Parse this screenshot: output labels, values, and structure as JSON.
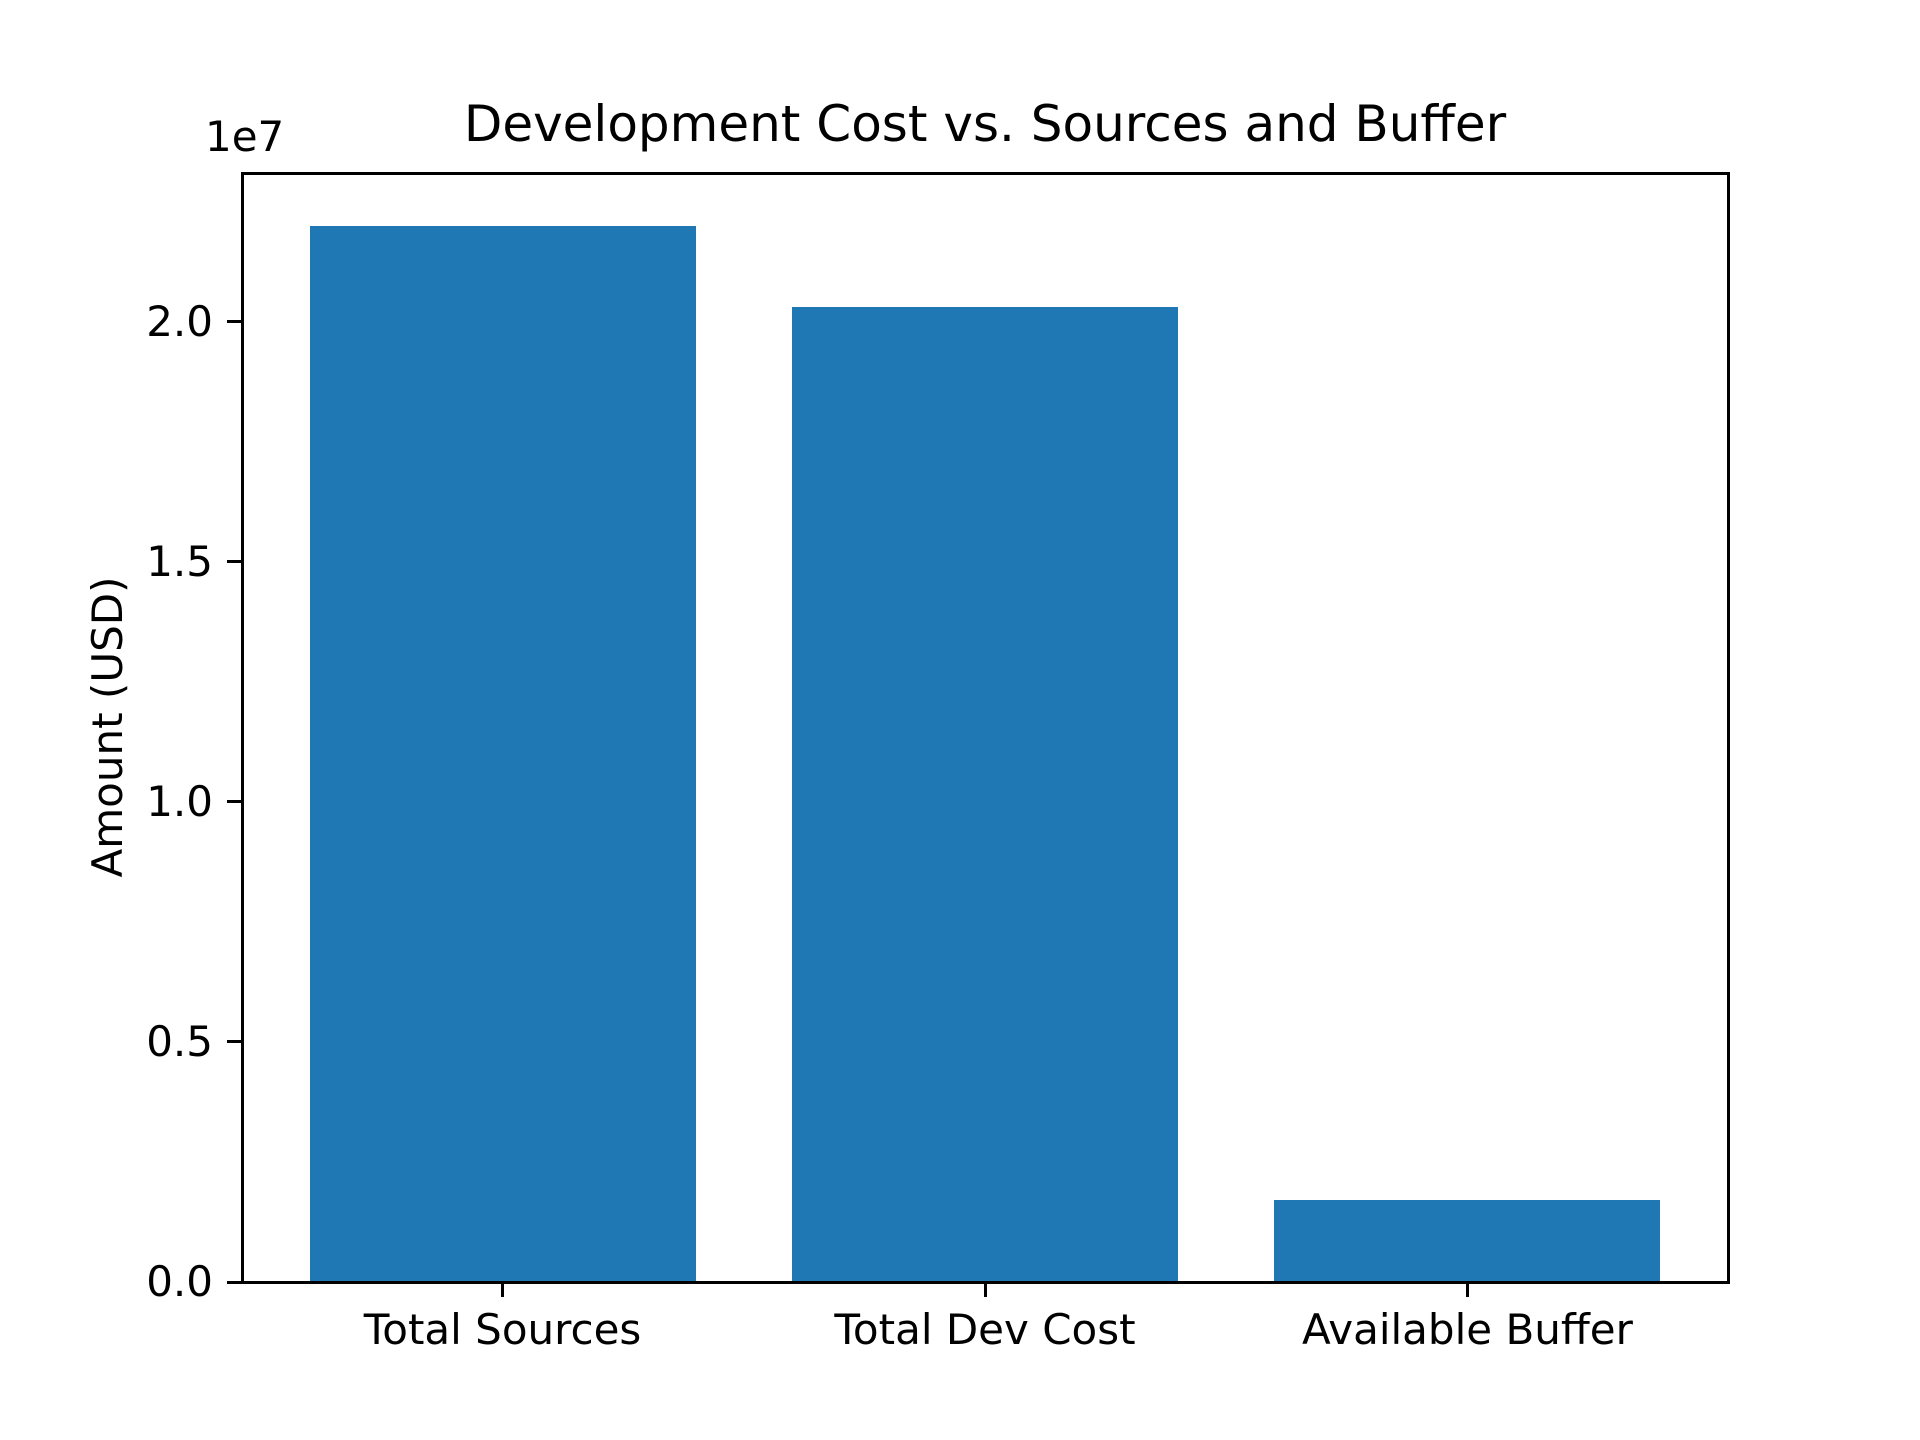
{
  "chart_data": {
    "type": "bar",
    "title": "Development Cost vs. Sources and Buffer",
    "ylabel": "Amount (USD)",
    "xlabel": "",
    "y_axis_offset_label": "1e7",
    "categories": [
      "Total Sources",
      "Total Dev Cost",
      "Available Buffer"
    ],
    "values": [
      22000000,
      20300000,
      1700000
    ],
    "ylim": [
      0,
      23100000
    ],
    "yticks": [
      0,
      5000000,
      10000000,
      15000000,
      20000000
    ],
    "ytick_labels": [
      "0.0",
      "0.5",
      "1.0",
      "1.5",
      "2.0"
    ],
    "bar_color": "#1f77b4",
    "axis_color": "#000000",
    "background_color": "#ffffff",
    "grid": false,
    "legend": null
  }
}
